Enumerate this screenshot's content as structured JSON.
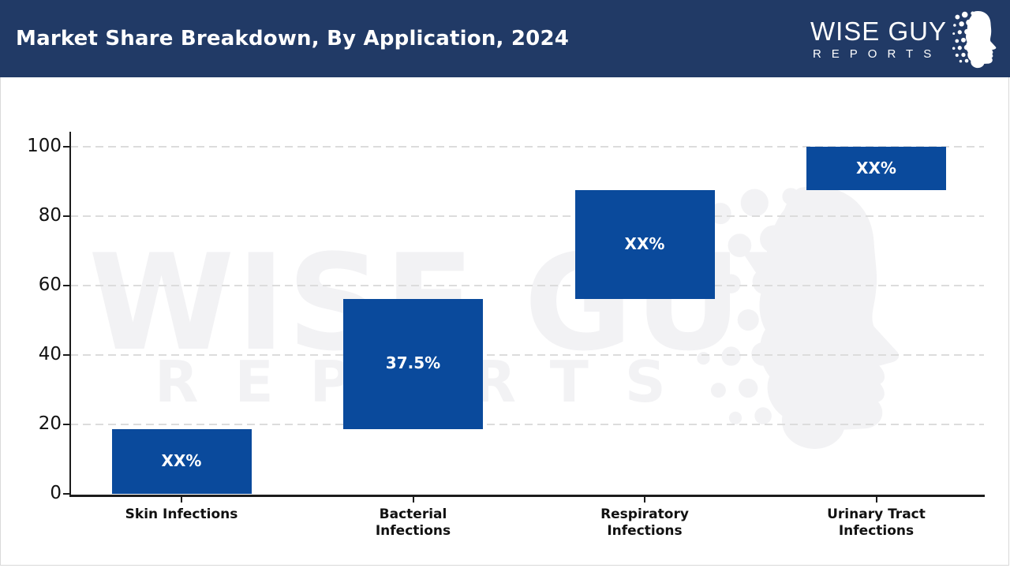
{
  "header": {
    "title": "Market Share Breakdown, By Application, 2024",
    "logo": {
      "name": "WISE GUY",
      "subtitle": "REPORTS"
    }
  },
  "watermark": {
    "name": "WISE GUY",
    "subtitle": "REPORTS"
  },
  "colors": {
    "header_bg": "#213a66",
    "bar_fill": "#0a4a9c",
    "bar_label_text": "#ffffff",
    "gridline": "#dcdcdc",
    "axis": "#1c1c1c",
    "tick_text": "#111111",
    "watermark": "#f2f2f4",
    "frame_border": "#d9d9d9"
  },
  "chart_data": {
    "type": "bar",
    "subtype": "floating-waterfall",
    "title": "Market Share Breakdown, By Application, 2024",
    "xlabel": "",
    "ylabel": "",
    "ylim": [
      0,
      100
    ],
    "yticks": [
      0,
      20,
      40,
      60,
      80,
      100
    ],
    "grid": "horizontal-dashed",
    "legend": "none",
    "categories": [
      "Skin Infections",
      "Bacterial Infections",
      "Respiratory Infections",
      "Urinary Tract Infections"
    ],
    "values": [
      18.75,
      37.5,
      31.25,
      12.5
    ],
    "value_labels": [
      "XX%",
      "37.5%",
      "XX%",
      "XX%"
    ],
    "segments": [
      {
        "category": "Skin Infections",
        "label_lines": "Skin Infections",
        "start": 0,
        "end": 18.75,
        "label": "XX%"
      },
      {
        "category": "Bacterial Infections",
        "label_lines": "Bacterial\nInfections",
        "start": 18.75,
        "end": 56.25,
        "label": "37.5%"
      },
      {
        "category": "Respiratory Infections",
        "label_lines": "Respiratory\nInfections",
        "start": 56.25,
        "end": 87.5,
        "label": "XX%"
      },
      {
        "category": "Urinary Tract Infections",
        "label_lines": "Urinary Tract\nInfections",
        "start": 87.5,
        "end": 100,
        "label": "XX%"
      }
    ]
  }
}
